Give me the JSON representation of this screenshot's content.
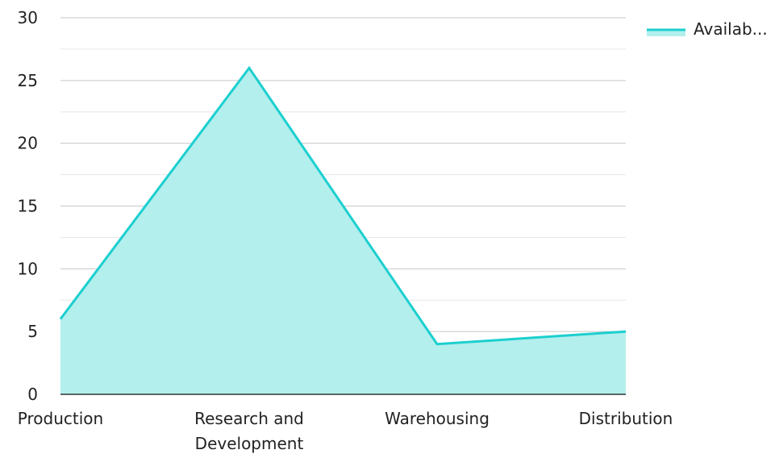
{
  "chart_data": {
    "type": "area",
    "categories": [
      "Production",
      "Research and Development",
      "Warehousing",
      "Distribution"
    ],
    "category_labels": [
      [
        "Production"
      ],
      [
        "Research and",
        "Development"
      ],
      [
        "Warehousing"
      ],
      [
        "Distribution"
      ]
    ],
    "series": [
      {
        "name": "Availab...",
        "values": [
          6,
          26,
          4,
          5
        ]
      }
    ],
    "ylim": [
      0,
      30
    ],
    "yticks": [
      "0",
      "5",
      "10",
      "15",
      "20",
      "25",
      "30"
    ],
    "grid": true,
    "legend": "top-right",
    "colors": {
      "line": "#1ccfcf",
      "fill": "#b2efed",
      "grid": "#c8c8c8",
      "minor_grid": "#e6e6e6",
      "axis": "#333333"
    }
  }
}
